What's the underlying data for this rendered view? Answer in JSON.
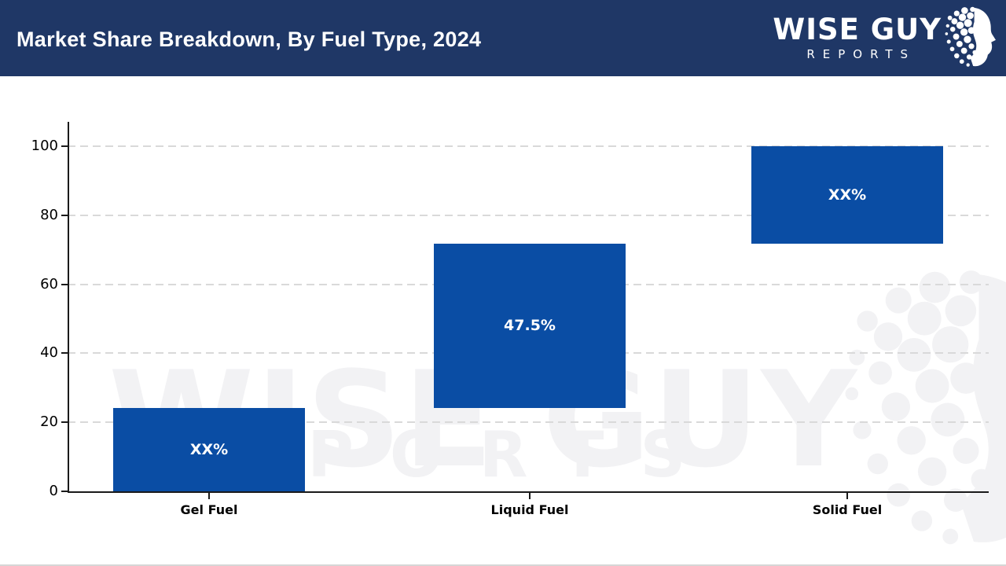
{
  "header": {
    "title": "Market Share Breakdown, By Fuel Type, 2024",
    "bg_color": "#1F3766",
    "logo": {
      "line1": "WISE GUY",
      "line2": "REPORTS"
    }
  },
  "watermark": {
    "line1": "WISE GUY",
    "line2": "REPORTS"
  },
  "chart_data": {
    "type": "bar",
    "variant": "waterfall",
    "title": "Market Share Breakdown, By Fuel Type, 2024",
    "categories": [
      "Gel Fuel",
      "Liquid Fuel",
      "Solid Fuel"
    ],
    "segments": [
      {
        "category": "Gel Fuel",
        "start": 0,
        "end": 24.25,
        "label": "XX%"
      },
      {
        "category": "Liquid Fuel",
        "start": 24.25,
        "end": 71.75,
        "label": "47.5%"
      },
      {
        "category": "Solid Fuel",
        "start": 71.75,
        "end": 100,
        "label": "XX%"
      }
    ],
    "yticks": [
      0,
      20,
      40,
      60,
      80,
      100
    ],
    "ylim": [
      0,
      107
    ],
    "xlabel": "",
    "ylabel": "",
    "legend": "none",
    "grid": "horizontal-dashed",
    "bar_color": "#0A4DA4",
    "bar_label_color": "#FFFFFF",
    "axis_color": "#1A1A1A",
    "grid_color": "#D9D9D9",
    "tick_label_color": "#000000"
  }
}
